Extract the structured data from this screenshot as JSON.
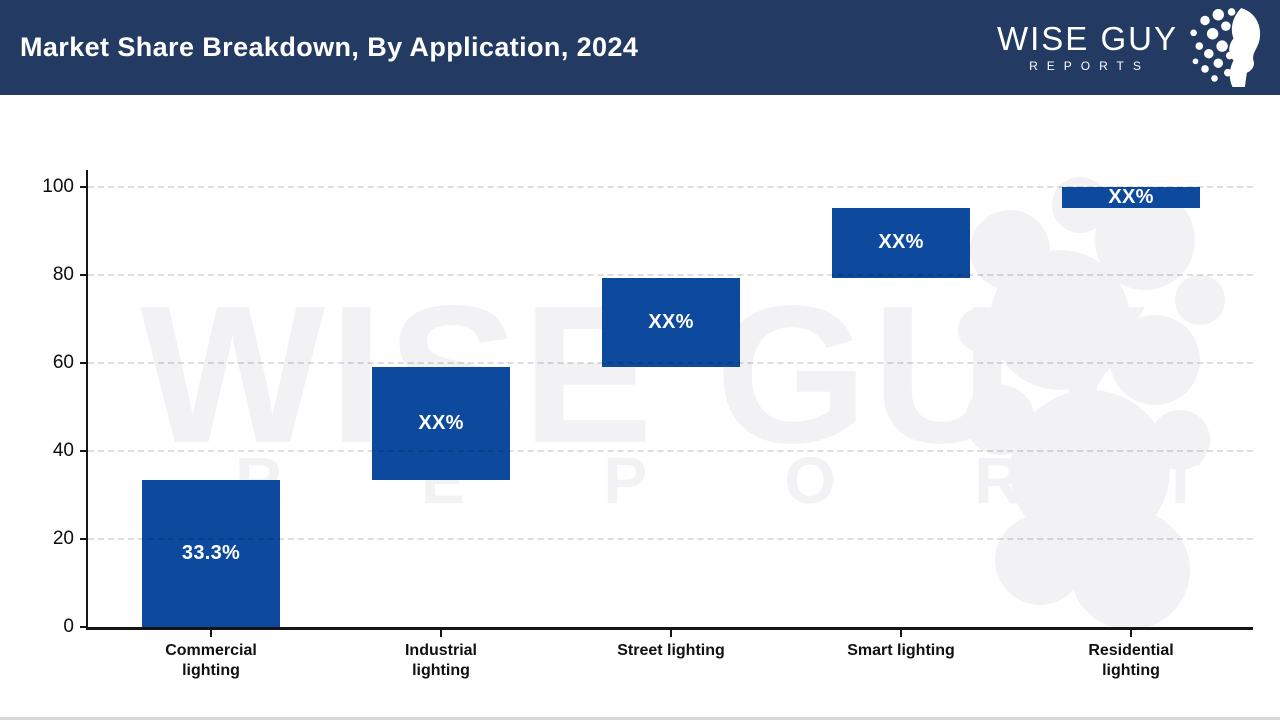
{
  "header": {
    "title": "Market Share Breakdown, By Application, 2024",
    "logo": {
      "line1": "WISE GUY",
      "line2": "REPORTS"
    }
  },
  "watermark": {
    "line1": "WISE GUY",
    "line2": "REPORTS"
  },
  "colors": {
    "header_bg": "#233a63",
    "bar": "#0d4a9e",
    "bar_label": "#ffffff",
    "grid": "rgba(0,0,0,0.13)",
    "axis": "#161616",
    "watermark": "#f2f2f5",
    "bottom_border": "#d8d8d8"
  },
  "chart_data": {
    "type": "bar",
    "subtype": "floating-waterfall",
    "title": "Market Share Breakdown, By Application, 2024",
    "categories": [
      "Commercial\nlighting",
      "Industrial\nlighting",
      "Street lighting",
      "Smart lighting",
      "Residential\nlighting"
    ],
    "segments": [
      {
        "category": "Commercial lighting",
        "start": 0,
        "end": 33.3,
        "label": "33.3%"
      },
      {
        "category": "Industrial lighting",
        "start": 33.3,
        "end": 59.2,
        "label": "XX%"
      },
      {
        "category": "Street lighting",
        "start": 59.2,
        "end": 79.4,
        "label": "XX%"
      },
      {
        "category": "Smart lighting",
        "start": 79.4,
        "end": 95.3,
        "label": "XX%"
      },
      {
        "category": "Residential lighting",
        "start": 95.3,
        "end": 100,
        "label": "XX%"
      }
    ],
    "y_ticks": [
      0,
      20,
      40,
      60,
      80,
      100
    ],
    "ylim": [
      0,
      100
    ],
    "xlabel": "",
    "ylabel": "",
    "grid": "horizontal-dashed",
    "legend": "none"
  }
}
